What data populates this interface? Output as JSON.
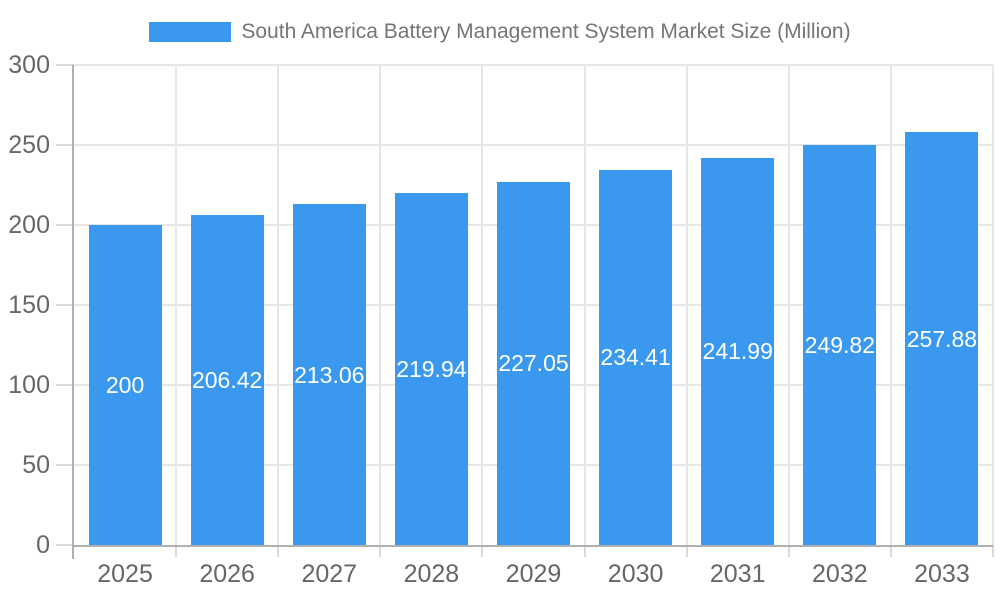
{
  "style": {
    "bar_color": "#3a99ee",
    "grid_color": "#e6e6e6",
    "tick_color": "#d9d9d9",
    "axis_color": "#b0b0b0",
    "axis_text_color": "#666666",
    "legend_text_color": "#757575",
    "bar_label_color": "#ffffff",
    "background_color": "#ffffff"
  },
  "legend": {
    "label": "South America Battery Management System Market Size (Million)"
  },
  "chart_data": {
    "type": "bar",
    "title": "",
    "xlabel": "",
    "ylabel": "",
    "categories": [
      "2025",
      "2026",
      "2027",
      "2028",
      "2029",
      "2030",
      "2031",
      "2032",
      "2033"
    ],
    "series": [
      {
        "name": "South America Battery Management System Market Size (Million)",
        "values": [
          200,
          206.42,
          213.06,
          219.94,
          227.05,
          234.41,
          241.99,
          249.82,
          257.88
        ]
      }
    ],
    "display_values": [
      "200",
      "206.42",
      "213.06",
      "219.94",
      "227.05",
      "234.41",
      "241.99",
      "249.82",
      "257.88"
    ],
    "ylim": [
      0,
      300
    ],
    "yticks": [
      0,
      50,
      100,
      150,
      200,
      250,
      300
    ],
    "ytick_labels": [
      "0",
      "50",
      "100",
      "150",
      "200",
      "250",
      "300"
    ],
    "grid": true,
    "legend_position": "top"
  }
}
